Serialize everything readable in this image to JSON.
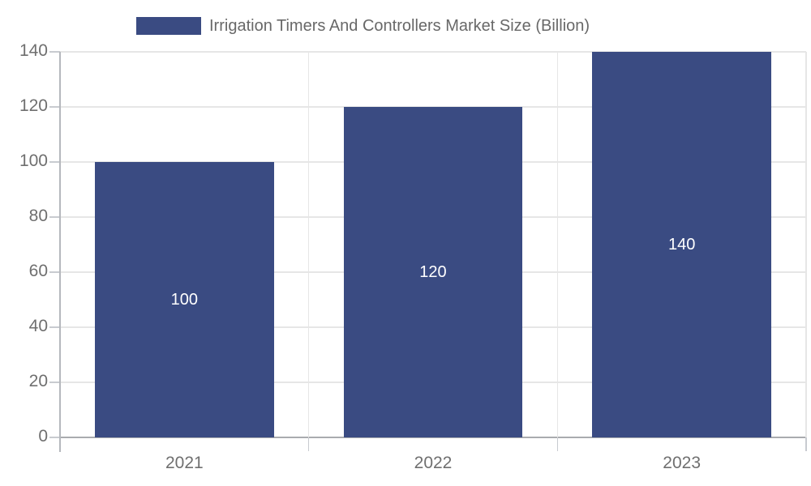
{
  "legend": {
    "label": "Irrigation Timers And Controllers Market Size (Billion)"
  },
  "chart_data": {
    "type": "bar",
    "title": "Irrigation Timers And Controllers Market Size (Billion)",
    "categories": [
      "2021",
      "2022",
      "2023"
    ],
    "values": [
      100,
      120,
      140
    ],
    "value_labels": [
      "100",
      "120",
      "140"
    ],
    "ytick_labels": [
      "0",
      "20",
      "40",
      "60",
      "80",
      "100",
      "120",
      "140"
    ],
    "yticks": [
      0,
      20,
      40,
      60,
      80,
      100,
      120,
      140
    ],
    "ylim": [
      0,
      140
    ],
    "grid": true,
    "legend_position": "top-center"
  },
  "colors": {
    "bar": "#3A4B82",
    "value_label": "#ffffff",
    "tick_label": "#6f6f6f",
    "legend_text": "#686868",
    "grid_line": "#e6e6e6",
    "baseline": "#a9abaf",
    "axis_line": "#b5b8bd",
    "tick_mark": "#c8cbd0",
    "background": "#ffffff"
  }
}
